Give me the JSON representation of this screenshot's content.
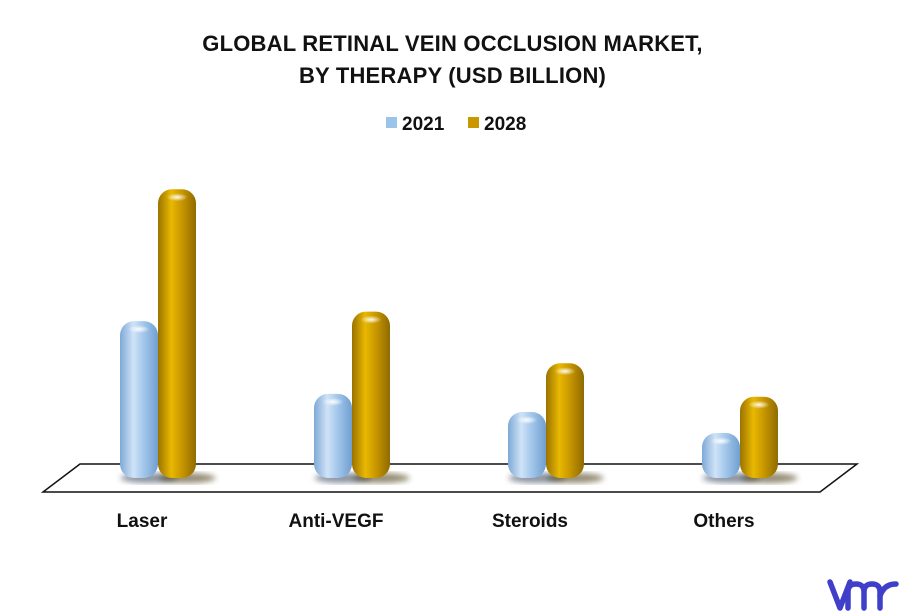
{
  "chart_data": {
    "type": "bar",
    "title_line1": "GLOBAL RETINAL VEIN OCCLUSION MARKET,",
    "title_line2": "BY THERAPY (USD BILLION)",
    "categories": [
      "Laser",
      "Anti-VEGF",
      "Steroids",
      "Others"
    ],
    "series": [
      {
        "name": "2021",
        "values": [
          1.64,
          0.88,
          0.69,
          0.47
        ],
        "color": "#9cc3e8"
      },
      {
        "name": "2028",
        "values": [
          3.02,
          1.74,
          1.2,
          0.85
        ],
        "color": "#c99700"
      }
    ],
    "ylim": [
      0,
      3.2
    ],
    "grid": false,
    "legend_position": "top-center"
  },
  "logo": {
    "icon": "vmr-logo",
    "color": "#3f3fc9"
  }
}
